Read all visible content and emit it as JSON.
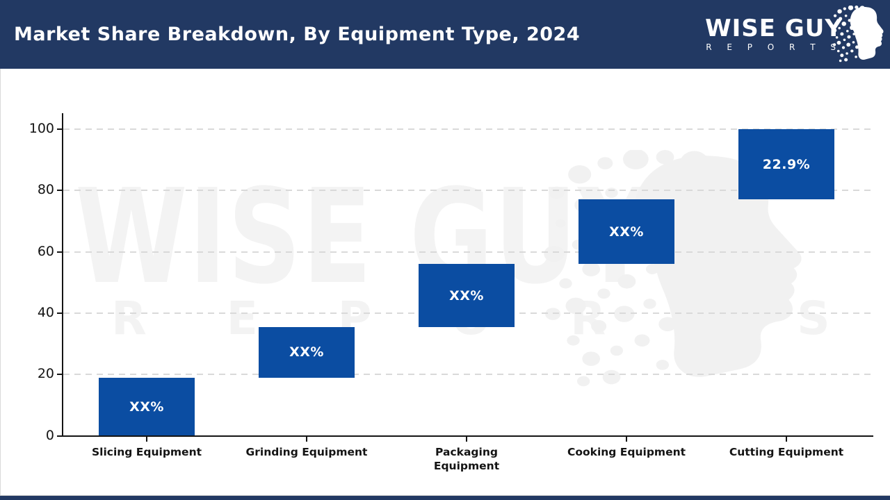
{
  "header": {
    "title": "Market Share Breakdown, By Equipment Type, 2024",
    "logo": {
      "wordmark": "WISE GUY",
      "subtext": "R E P O R T S"
    }
  },
  "watermark": {
    "wordmark": "WISE GUY",
    "subtext": "R E P O R T S"
  },
  "colors": {
    "header_bg": "#223963",
    "bar_fill": "#0b4da2",
    "bar_label_text": "#ffffff",
    "gridline": "#d9d9d9",
    "axis": "#141414",
    "watermark": "#f3f3f3",
    "background": "#ffffff"
  },
  "chart_data": {
    "type": "bar",
    "subtype": "floating-cumulative-waterfall",
    "title": "Market Share Breakdown, By Equipment Type, 2024",
    "categories": [
      "Slicing Equipment",
      "Grinding Equipment",
      "Packaging Equipment",
      "Cooking Equipment",
      "Cutting Equipment"
    ],
    "series": [
      {
        "name": "Market Share (%)",
        "points": [
          {
            "category": "Slicing Equipment",
            "start": 0,
            "end": 19.0,
            "label": "XX%"
          },
          {
            "category": "Grinding Equipment",
            "start": 19.0,
            "end": 35.5,
            "label": "XX%"
          },
          {
            "category": "Packaging Equipment",
            "start": 35.5,
            "end": 56.0,
            "label": "XX%"
          },
          {
            "category": "Cooking Equipment",
            "start": 56.0,
            "end": 77.1,
            "label": "XX%"
          },
          {
            "category": "Cutting Equipment",
            "start": 77.1,
            "end": 100.0,
            "label": "22.9%"
          }
        ]
      }
    ],
    "xlabel": "",
    "ylabel": "",
    "yticks": [
      0,
      20,
      40,
      60,
      80,
      100
    ],
    "ylim": [
      0,
      105
    ],
    "grid": "horizontal-dashed",
    "legend": "none"
  }
}
